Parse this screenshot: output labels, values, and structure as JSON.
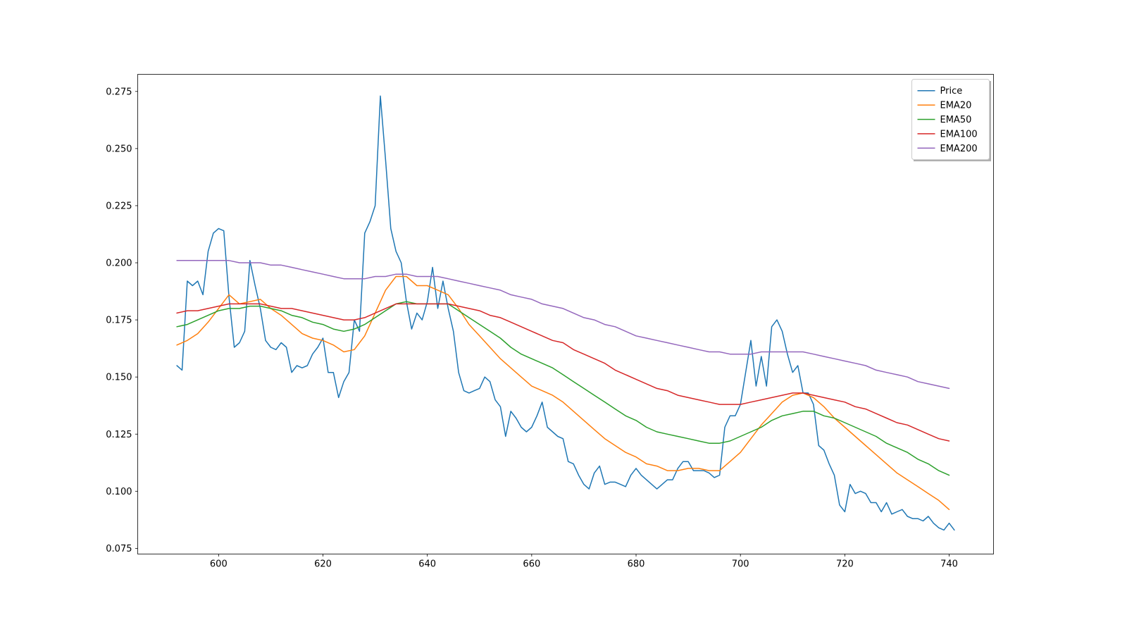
{
  "figure": {
    "background": "#ffffff"
  },
  "chart_data": {
    "type": "line",
    "title": "",
    "xlabel": "",
    "ylabel": "",
    "xlim": [
      584.5,
      748.5
    ],
    "ylim": [
      0.0725,
      0.2825
    ],
    "xticks": [
      600,
      620,
      640,
      660,
      680,
      700,
      720,
      740
    ],
    "yticks": [
      0.075,
      0.1,
      0.125,
      0.15,
      0.175,
      0.2,
      0.225,
      0.25,
      0.275
    ],
    "grid": false,
    "legend": {
      "position": "upper right",
      "entries": [
        "Price",
        "EMA20",
        "EMA50",
        "EMA100",
        "EMA200"
      ]
    },
    "series": [
      {
        "name": "Price",
        "color": "#1f77b4",
        "x_start": 592,
        "x_step": 1,
        "values": [
          0.155,
          0.153,
          0.192,
          0.19,
          0.192,
          0.186,
          0.205,
          0.213,
          0.215,
          0.214,
          0.185,
          0.163,
          0.165,
          0.17,
          0.201,
          0.19,
          0.18,
          0.166,
          0.163,
          0.162,
          0.165,
          0.163,
          0.152,
          0.155,
          0.154,
          0.155,
          0.16,
          0.163,
          0.167,
          0.152,
          0.152,
          0.141,
          0.148,
          0.152,
          0.175,
          0.17,
          0.213,
          0.218,
          0.225,
          0.273,
          0.245,
          0.215,
          0.205,
          0.2,
          0.183,
          0.171,
          0.178,
          0.175,
          0.183,
          0.198,
          0.18,
          0.192,
          0.18,
          0.17,
          0.152,
          0.144,
          0.143,
          0.144,
          0.145,
          0.15,
          0.148,
          0.14,
          0.137,
          0.124,
          0.135,
          0.132,
          0.128,
          0.126,
          0.128,
          0.133,
          0.139,
          0.128,
          0.126,
          0.124,
          0.123,
          0.113,
          0.112,
          0.107,
          0.103,
          0.101,
          0.108,
          0.111,
          0.103,
          0.104,
          0.104,
          0.103,
          0.102,
          0.107,
          0.11,
          0.107,
          0.105,
          0.103,
          0.101,
          0.103,
          0.105,
          0.105,
          0.11,
          0.113,
          0.113,
          0.109,
          0.109,
          0.109,
          0.108,
          0.106,
          0.107,
          0.128,
          0.133,
          0.133,
          0.138,
          0.152,
          0.166,
          0.146,
          0.159,
          0.146,
          0.172,
          0.175,
          0.17,
          0.16,
          0.152,
          0.155,
          0.143,
          0.143,
          0.138,
          0.12,
          0.118,
          0.112,
          0.107,
          0.094,
          0.091,
          0.103,
          0.099,
          0.1,
          0.099,
          0.095,
          0.095,
          0.091,
          0.095,
          0.09,
          0.091,
          0.092,
          0.089,
          0.088,
          0.088,
          0.087,
          0.089,
          0.086,
          0.084,
          0.083,
          0.086,
          0.083
        ]
      },
      {
        "name": "EMA20",
        "color": "#ff7f0e",
        "x_start": 592,
        "x_step": 2,
        "values": [
          0.164,
          0.166,
          0.169,
          0.174,
          0.18,
          0.186,
          0.182,
          0.183,
          0.184,
          0.18,
          0.177,
          0.173,
          0.169,
          0.167,
          0.166,
          0.164,
          0.161,
          0.162,
          0.168,
          0.178,
          0.188,
          0.194,
          0.194,
          0.19,
          0.19,
          0.188,
          0.186,
          0.18,
          0.173,
          0.168,
          0.163,
          0.158,
          0.154,
          0.15,
          0.146,
          0.144,
          0.142,
          0.139,
          0.135,
          0.131,
          0.127,
          0.123,
          0.12,
          0.117,
          0.115,
          0.112,
          0.111,
          0.109,
          0.109,
          0.11,
          0.11,
          0.109,
          0.109,
          0.113,
          0.117,
          0.123,
          0.129,
          0.134,
          0.139,
          0.142,
          0.143,
          0.141,
          0.137,
          0.132,
          0.128,
          0.124,
          0.12,
          0.116,
          0.112,
          0.108,
          0.105,
          0.102,
          0.099,
          0.096,
          0.092
        ]
      },
      {
        "name": "EMA50",
        "color": "#2ca02c",
        "x_start": 592,
        "x_step": 2,
        "values": [
          0.172,
          0.173,
          0.175,
          0.177,
          0.179,
          0.18,
          0.18,
          0.181,
          0.181,
          0.18,
          0.179,
          0.177,
          0.176,
          0.174,
          0.173,
          0.171,
          0.17,
          0.171,
          0.173,
          0.176,
          0.179,
          0.182,
          0.183,
          0.182,
          0.182,
          0.182,
          0.182,
          0.179,
          0.176,
          0.173,
          0.17,
          0.167,
          0.163,
          0.16,
          0.158,
          0.156,
          0.154,
          0.151,
          0.148,
          0.145,
          0.142,
          0.139,
          0.136,
          0.133,
          0.131,
          0.128,
          0.126,
          0.125,
          0.124,
          0.123,
          0.122,
          0.121,
          0.121,
          0.122,
          0.124,
          0.126,
          0.128,
          0.131,
          0.133,
          0.134,
          0.135,
          0.135,
          0.133,
          0.132,
          0.13,
          0.128,
          0.126,
          0.124,
          0.121,
          0.119,
          0.117,
          0.114,
          0.112,
          0.109,
          0.107
        ]
      },
      {
        "name": "EMA100",
        "color": "#d62728",
        "x_start": 592,
        "x_step": 2,
        "values": [
          0.178,
          0.179,
          0.179,
          0.18,
          0.181,
          0.182,
          0.182,
          0.182,
          0.182,
          0.181,
          0.18,
          0.18,
          0.179,
          0.178,
          0.177,
          0.176,
          0.175,
          0.175,
          0.176,
          0.178,
          0.18,
          0.182,
          0.182,
          0.182,
          0.182,
          0.182,
          0.182,
          0.181,
          0.18,
          0.179,
          0.177,
          0.176,
          0.174,
          0.172,
          0.17,
          0.168,
          0.166,
          0.165,
          0.162,
          0.16,
          0.158,
          0.156,
          0.153,
          0.151,
          0.149,
          0.147,
          0.145,
          0.144,
          0.142,
          0.141,
          0.14,
          0.139,
          0.138,
          0.138,
          0.138,
          0.139,
          0.14,
          0.141,
          0.142,
          0.143,
          0.143,
          0.142,
          0.141,
          0.14,
          0.139,
          0.137,
          0.136,
          0.134,
          0.132,
          0.13,
          0.129,
          0.127,
          0.125,
          0.123,
          0.122
        ]
      },
      {
        "name": "EMA200",
        "color": "#9467bd",
        "x_start": 592,
        "x_step": 2,
        "values": [
          0.201,
          0.201,
          0.201,
          0.201,
          0.201,
          0.201,
          0.2,
          0.2,
          0.2,
          0.199,
          0.199,
          0.198,
          0.197,
          0.196,
          0.195,
          0.194,
          0.193,
          0.193,
          0.193,
          0.194,
          0.194,
          0.195,
          0.195,
          0.194,
          0.194,
          0.194,
          0.193,
          0.192,
          0.191,
          0.19,
          0.189,
          0.188,
          0.186,
          0.185,
          0.184,
          0.182,
          0.181,
          0.18,
          0.178,
          0.176,
          0.175,
          0.173,
          0.172,
          0.17,
          0.168,
          0.167,
          0.166,
          0.165,
          0.164,
          0.163,
          0.162,
          0.161,
          0.161,
          0.16,
          0.16,
          0.16,
          0.161,
          0.161,
          0.161,
          0.161,
          0.161,
          0.16,
          0.159,
          0.158,
          0.157,
          0.156,
          0.155,
          0.153,
          0.152,
          0.151,
          0.15,
          0.148,
          0.147,
          0.146,
          0.145
        ]
      }
    ]
  }
}
